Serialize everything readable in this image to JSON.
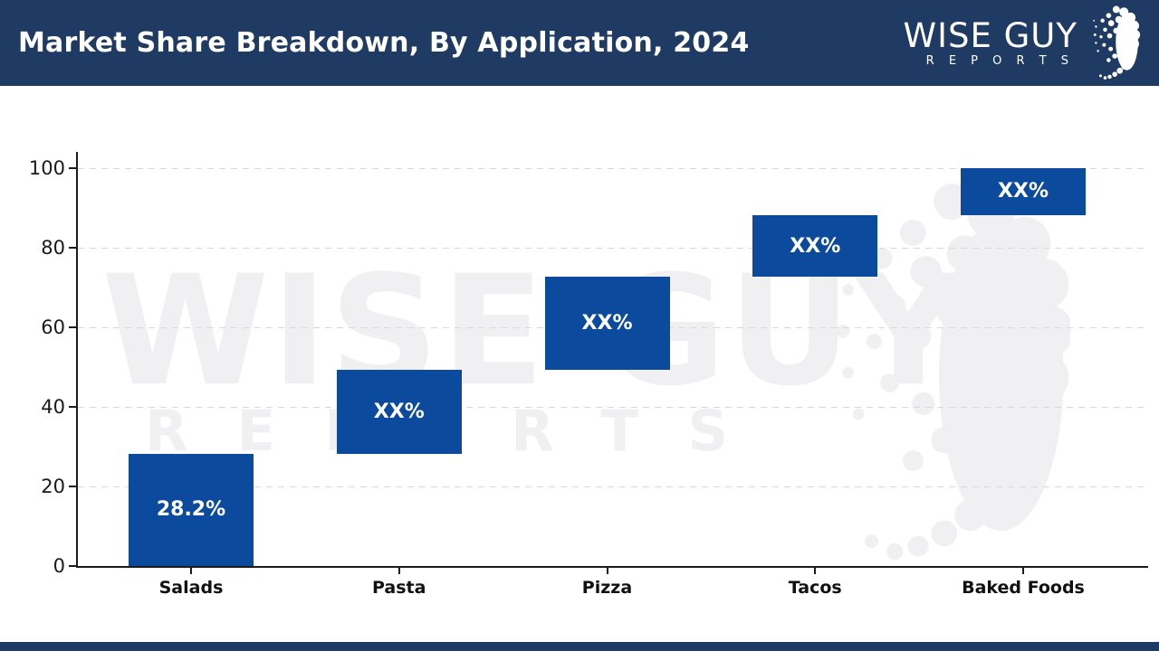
{
  "header": {
    "title": "Market Share Breakdown, By Application, 2024",
    "bg_color": "#1F3A63",
    "logo": {
      "wordmark": "WISE GUY",
      "subtext": "R E P O R T S"
    }
  },
  "watermark": {
    "wordmark": "WISE GUY",
    "subtext": "REPORTS"
  },
  "chart_data": {
    "type": "bar",
    "variant": "floating-segment-waterfall",
    "title": "Market Share Breakdown, By Application, 2024",
    "categories": [
      "Salads",
      "Pasta",
      "Pizza",
      "Tacos",
      "Baked Foods"
    ],
    "series": [
      {
        "name": "Market share (%)",
        "segments": [
          {
            "category": "Salads",
            "start": 0,
            "end": 28.2,
            "label": "28.2%"
          },
          {
            "category": "Pasta",
            "start": 28.2,
            "end": 49.3,
            "label": "XX%"
          },
          {
            "category": "Pizza",
            "start": 49.3,
            "end": 72.7,
            "label": "XX%"
          },
          {
            "category": "Tacos",
            "start": 72.7,
            "end": 88.2,
            "label": "XX%"
          },
          {
            "category": "Baked Foods",
            "start": 88.2,
            "end": 100,
            "label": "XX%"
          }
        ]
      }
    ],
    "xlabel": "",
    "ylabel": "",
    "ylim": [
      0,
      104
    ],
    "yticks": [
      0,
      20,
      40,
      60,
      80,
      100
    ],
    "grid": "horizontal-dashed",
    "legend": "none",
    "bar_color": "#0B4A9C",
    "bar_label_color": "#FFFFFF",
    "axis_color": "#1C1C1C",
    "gridline_color": "#D9D9D9"
  },
  "footer": {
    "bg_color": "#1F3A63"
  }
}
